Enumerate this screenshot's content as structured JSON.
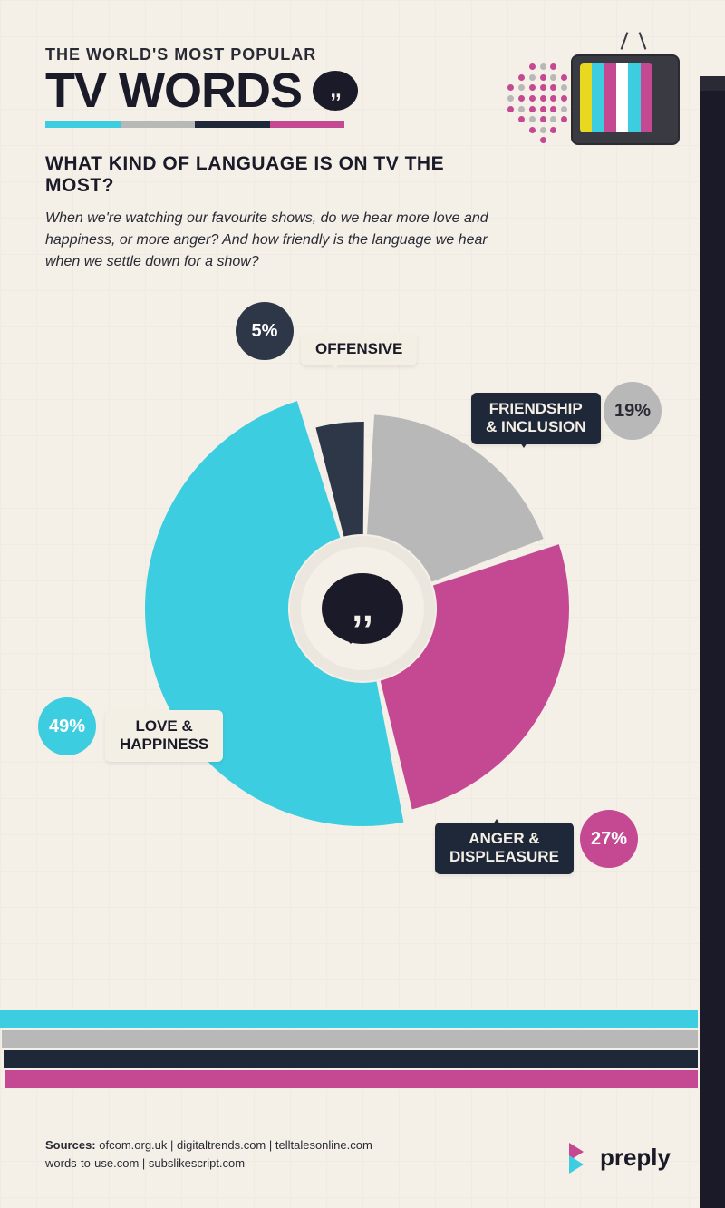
{
  "header": {
    "subtitle": "THE WORLD'S MOST POPULAR",
    "title": "TV WORDS",
    "bar_colors": [
      "#3dcde0",
      "#b8b8b8",
      "#1e2838",
      "#c54893"
    ]
  },
  "question": "WHAT KIND OF LANGUAGE IS ON TV THE MOST?",
  "intro": "When we're watching our favourite shows, do we hear more love and happiness, or more anger? And how friendly is the language we hear when we settle down for a show?",
  "chart": {
    "type": "donut",
    "slices": [
      {
        "label": "OFFENSIVE",
        "value": 5,
        "color": "#2d3748",
        "pct_text": "5%",
        "label_dark": false
      },
      {
        "label": "FRIENDSHIP\n& INCLUSION",
        "value": 19,
        "color": "#b8b8b8",
        "pct_text": "19%",
        "label_dark": true
      },
      {
        "label": "ANGER &\nDISPLEASURE",
        "value": 27,
        "color": "#c54893",
        "pct_text": "27%",
        "label_dark": true
      },
      {
        "label": "LOVE &\nHAPPINESS",
        "value": 49,
        "color": "#3dcde0",
        "pct_text": "49%",
        "label_dark": false
      }
    ],
    "inner_radius": 82,
    "outer_radius": 220,
    "gap_deg": 3,
    "start_angle": -106
  },
  "tv": {
    "screen_colors": [
      "#e8d820",
      "#3dcde0",
      "#c54893",
      "#ffffff",
      "#3dcde0",
      "#c54893"
    ],
    "dot_colors": [
      "#c54893",
      "#b8b8b8",
      "#3dcde0"
    ]
  },
  "stripes": [
    "#3dcde0",
    "#b8b8b8",
    "#1e2838",
    "#c54893"
  ],
  "footer": {
    "sources_label": "Sources:",
    "sources_line1": " ofcom.org.uk | digitaltrends.com | telltalesonline.com",
    "sources_line2": "words-to-use.com | subslikescript.com",
    "logo_text": "preply"
  }
}
